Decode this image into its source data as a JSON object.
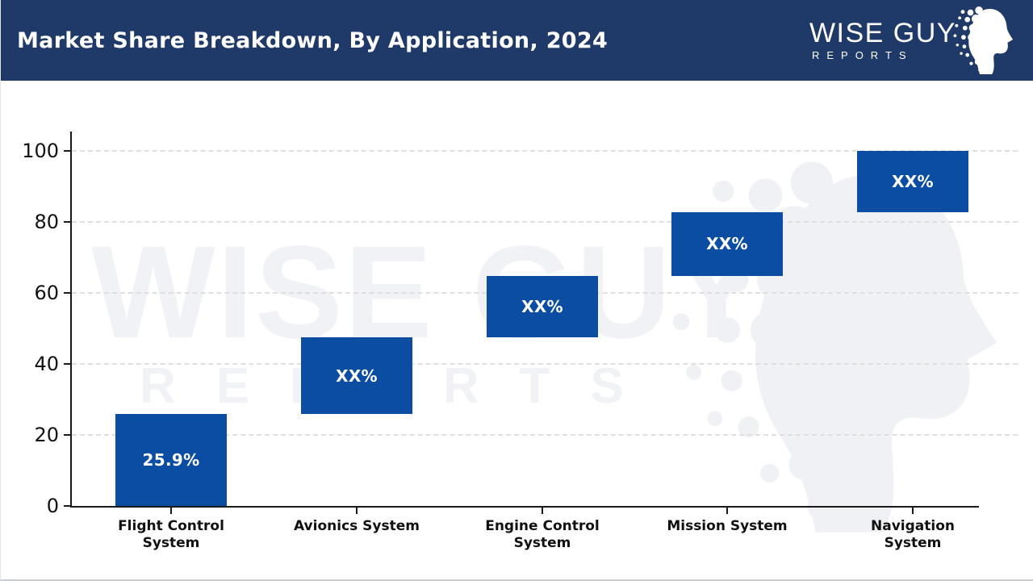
{
  "header": {
    "title": "Market Share Breakdown, By Application, 2024",
    "bg_color": "#1f3a68",
    "logo": {
      "line1": "WISE GUY",
      "line2": "REPORTS",
      "head_icon": "dotted-head-profile"
    }
  },
  "watermark": {
    "line1": "WISE GUY",
    "line2": "REPORTS",
    "head_icon": "dotted-head-profile",
    "color": "#f1f2f5"
  },
  "chart_data": {
    "type": "bar",
    "subtype": "waterfall",
    "title": "Market Share Breakdown, By Application, 2024",
    "categories": [
      "Flight Control System",
      "Avionics System",
      "Engine Control System",
      "Mission System",
      "Navigation System"
    ],
    "segments": [
      {
        "category": "Flight Control System",
        "start": 0,
        "end": 25.9,
        "label": "25.9%"
      },
      {
        "category": "Avionics System",
        "start": 25.9,
        "end": 47.5,
        "label": "XX%"
      },
      {
        "category": "Engine Control System",
        "start": 47.5,
        "end": 64.8,
        "label": "XX%"
      },
      {
        "category": "Mission System",
        "start": 64.8,
        "end": 82.7,
        "label": "XX%"
      },
      {
        "category": "Navigation System",
        "start": 82.7,
        "end": 100,
        "label": "XX%"
      }
    ],
    "xlabel": "",
    "ylabel": "",
    "ylim": [
      0,
      100
    ],
    "yticks": [
      0,
      20,
      40,
      60,
      80,
      100
    ],
    "grid": "horizontal-dashed",
    "legend": "none",
    "bar_color": "#0b4da2",
    "bar_label_color": "#ffffff",
    "axis_color": "#1a1a1a",
    "gridline_color": "#dfdfdf"
  }
}
